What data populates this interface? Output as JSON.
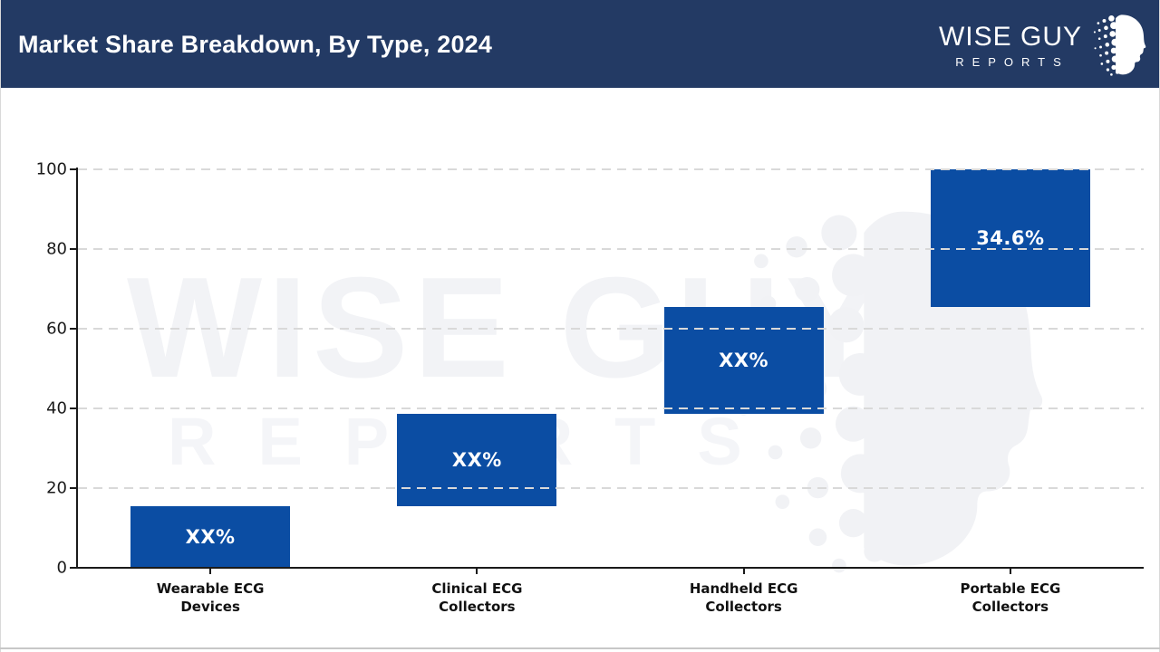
{
  "header": {
    "title": "Market Share Breakdown, By Type, 2024",
    "logo": {
      "name": "WISE GUY",
      "subtitle": "REPORTS"
    }
  },
  "watermark": {
    "line1": "WISE GUY",
    "line2": "REPORTS"
  },
  "chart_data": {
    "type": "bar",
    "subtype": "waterfall",
    "title": "Market Share Breakdown, By Type, 2024",
    "categories": [
      "Wearable ECG Devices",
      "Clinical ECG Collectors",
      "Handheld ECG Collectors",
      "Portable ECG Collectors"
    ],
    "segments": [
      {
        "category": "Wearable ECG\nDevices",
        "start": 0,
        "end": 15.4,
        "value": 15.4,
        "value_label": "XX%"
      },
      {
        "category": "Clinical ECG\nCollectors",
        "start": 15.4,
        "end": 38.7,
        "value": 23.3,
        "value_label": "XX%"
      },
      {
        "category": "Handheld ECG\nCollectors",
        "start": 38.7,
        "end": 65.4,
        "value": 26.7,
        "value_label": "XX%"
      },
      {
        "category": "Portable ECG\nCollectors",
        "start": 65.4,
        "end": 100,
        "value": 34.6,
        "value_label": "34.6%"
      }
    ],
    "yticks": [
      0,
      20,
      40,
      60,
      80,
      100
    ],
    "ylim": [
      0,
      100
    ],
    "grid": "dashed-horizontal",
    "legend": "none",
    "bar_color": "#0b4da3"
  },
  "colors": {
    "header_bg": "#233a64",
    "bar": "#0b4da3",
    "gridline": "#d9d9d9",
    "axis": "#1a1a1a",
    "watermark": "#f2f3f6",
    "page_bg": "#ffffff"
  }
}
